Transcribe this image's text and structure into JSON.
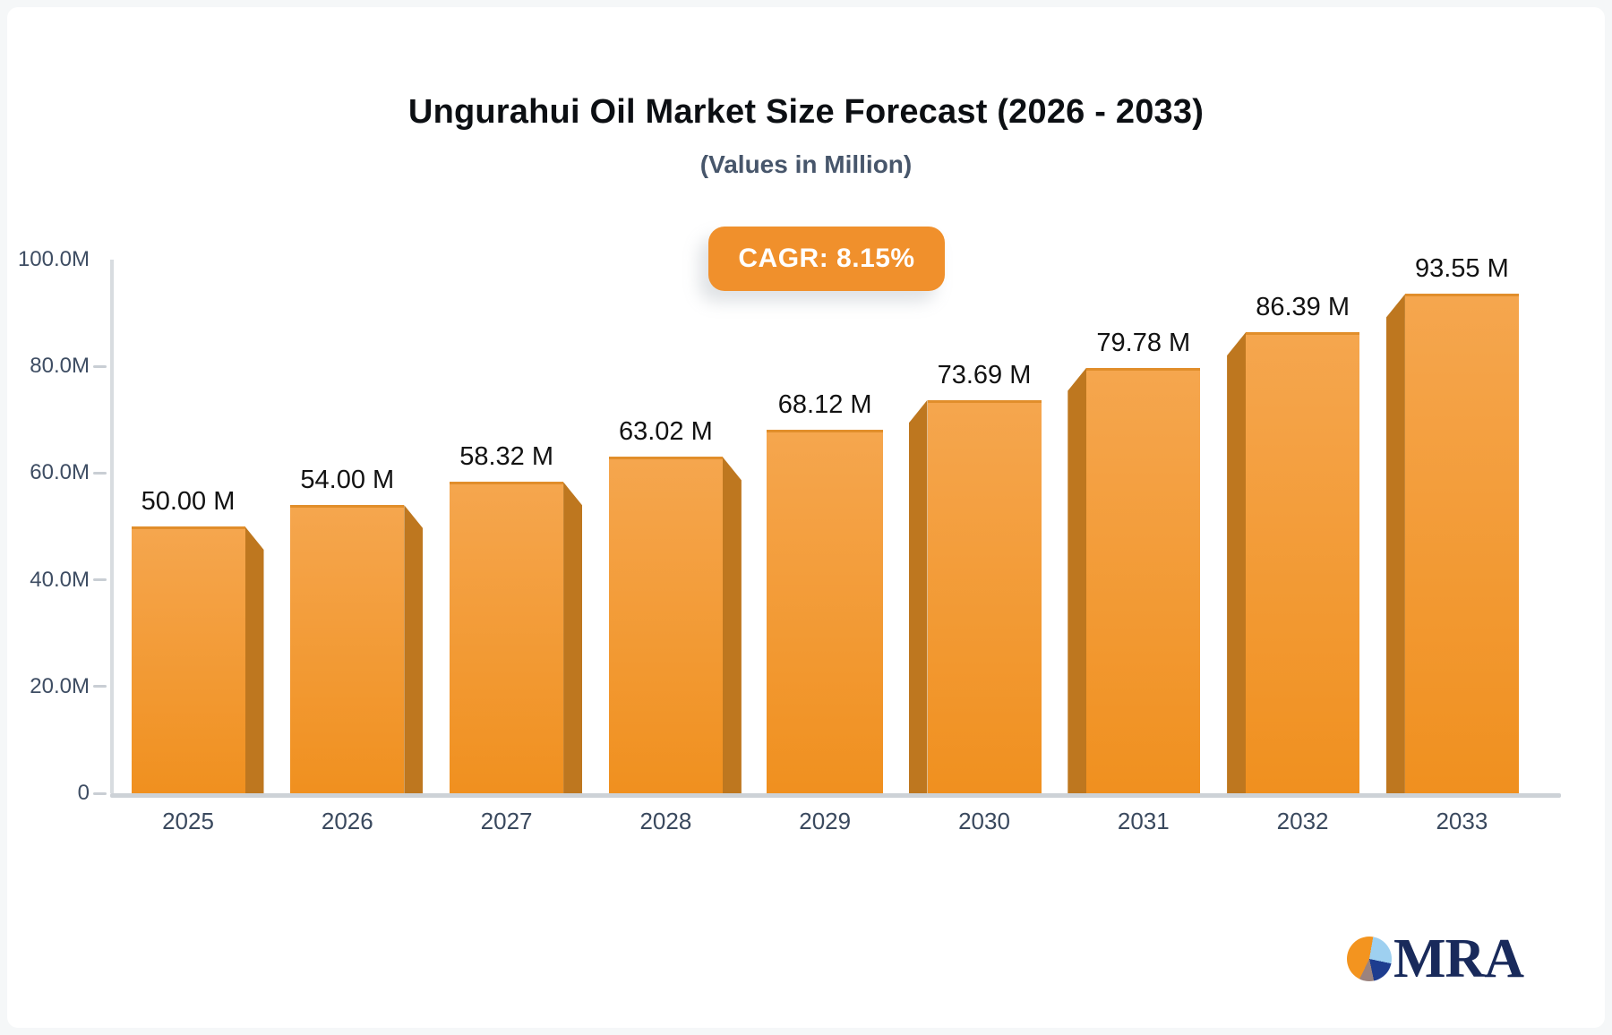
{
  "header": {
    "title": "Ungurahui Oil Market Size Forecast (2026 - 2033)",
    "subtitle": "(Values in Million)",
    "badge": {
      "label": "CAGR: 8.15%",
      "color": "#f0902c"
    }
  },
  "chart_data": {
    "type": "bar",
    "title": "Ungurahui Oil Market Size Forecast (2026 - 2033)",
    "subtitle": "(Values in Million)",
    "unit": "Million",
    "cagr_percent": 8.15,
    "categories": [
      "2025",
      "2026",
      "2027",
      "2028",
      "2029",
      "2030",
      "2031",
      "2032",
      "2033"
    ],
    "values": [
      50.0,
      54.0,
      58.32,
      63.02,
      68.12,
      73.69,
      79.78,
      86.39,
      93.55
    ],
    "value_labels": [
      "50.00 M",
      "54.00 M",
      "58.32 M",
      "63.02 M",
      "68.12 M",
      "73.69 M",
      "79.78 M",
      "86.39 M",
      "93.55 M"
    ],
    "ylim": [
      0,
      100
    ],
    "yticks": [
      {
        "label": "100.0M",
        "value": 100
      },
      {
        "label": "80.0M",
        "value": 80
      },
      {
        "label": "60.0M",
        "value": 60
      },
      {
        "label": "40.0M",
        "value": 40
      },
      {
        "label": "20.0M",
        "value": 20
      },
      {
        "label": "0",
        "value": 0
      }
    ],
    "grid": false,
    "legend": null,
    "colors": {
      "bar_face_top": "#f5a64e",
      "bar_face_bottom": "#f0901f",
      "bar_side": "#be771f",
      "axis_line": "#d8dce0",
      "tick_text": "#3e4d63",
      "value_label_text": "#121212"
    }
  },
  "branding": {
    "logo_text": "MRA",
    "logo_icon": "pie-chart",
    "logo_colors": {
      "orange": "#f3941f",
      "light_blue": "#9ed0f0",
      "dark_blue": "#1e3d8f",
      "gray": "#9b837e",
      "text_navy": "#192a5b"
    }
  }
}
